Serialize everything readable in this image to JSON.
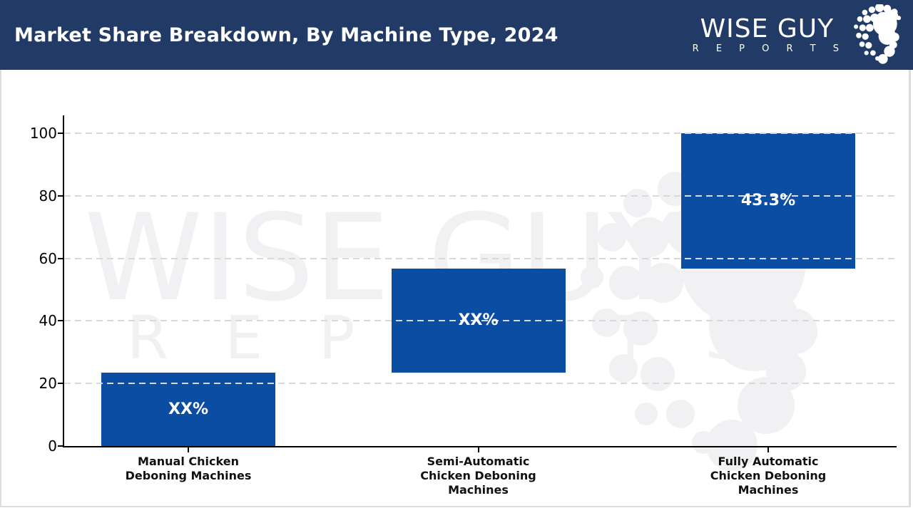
{
  "header": {
    "title": "Market Share Breakdown, By Machine Type, 2024",
    "logo": {
      "wordmark": "WISE GUY",
      "subtext": "R E P O R T S"
    }
  },
  "watermark": {
    "wordmark": "WISE GUY",
    "subtext": "R E P O R T S"
  },
  "colors": {
    "header_bg": "#213a66",
    "bar": "#0b4da2",
    "bar_label": "#ffffff",
    "grid": "#d9d9d9",
    "axis": "#000000",
    "tick_label": "#000000",
    "category_label": "#111111",
    "watermark": "#f1f1f4"
  },
  "chart_data": {
    "type": "bar",
    "subtype": "waterfall",
    "title": "Market Share Breakdown, By Machine Type, 2024",
    "categories": [
      "Manual Chicken Deboning Machines",
      "Semi-Automatic Chicken Deboning Machines",
      "Fully Automatic Chicken Deboning Machines"
    ],
    "category_lines": [
      [
        "Manual Chicken",
        "Deboning Machines"
      ],
      [
        "Semi-Automatic",
        "Chicken Deboning",
        "Machines"
      ],
      [
        "Fully Automatic",
        "Chicken Deboning",
        "Machines"
      ]
    ],
    "values": [
      23.4,
      33.3,
      43.3
    ],
    "bar_labels": [
      "XX%",
      "XX%",
      "43.3%"
    ],
    "segments": [
      {
        "start": 0,
        "end": 23.4
      },
      {
        "start": 23.4,
        "end": 56.7
      },
      {
        "start": 56.7,
        "end": 100
      }
    ],
    "ylim": [
      0,
      100
    ],
    "yticks": [
      0,
      20,
      40,
      60,
      80,
      100
    ],
    "xlabel": "",
    "ylabel": "",
    "grid": "horizontal-dashed",
    "legend": null
  }
}
